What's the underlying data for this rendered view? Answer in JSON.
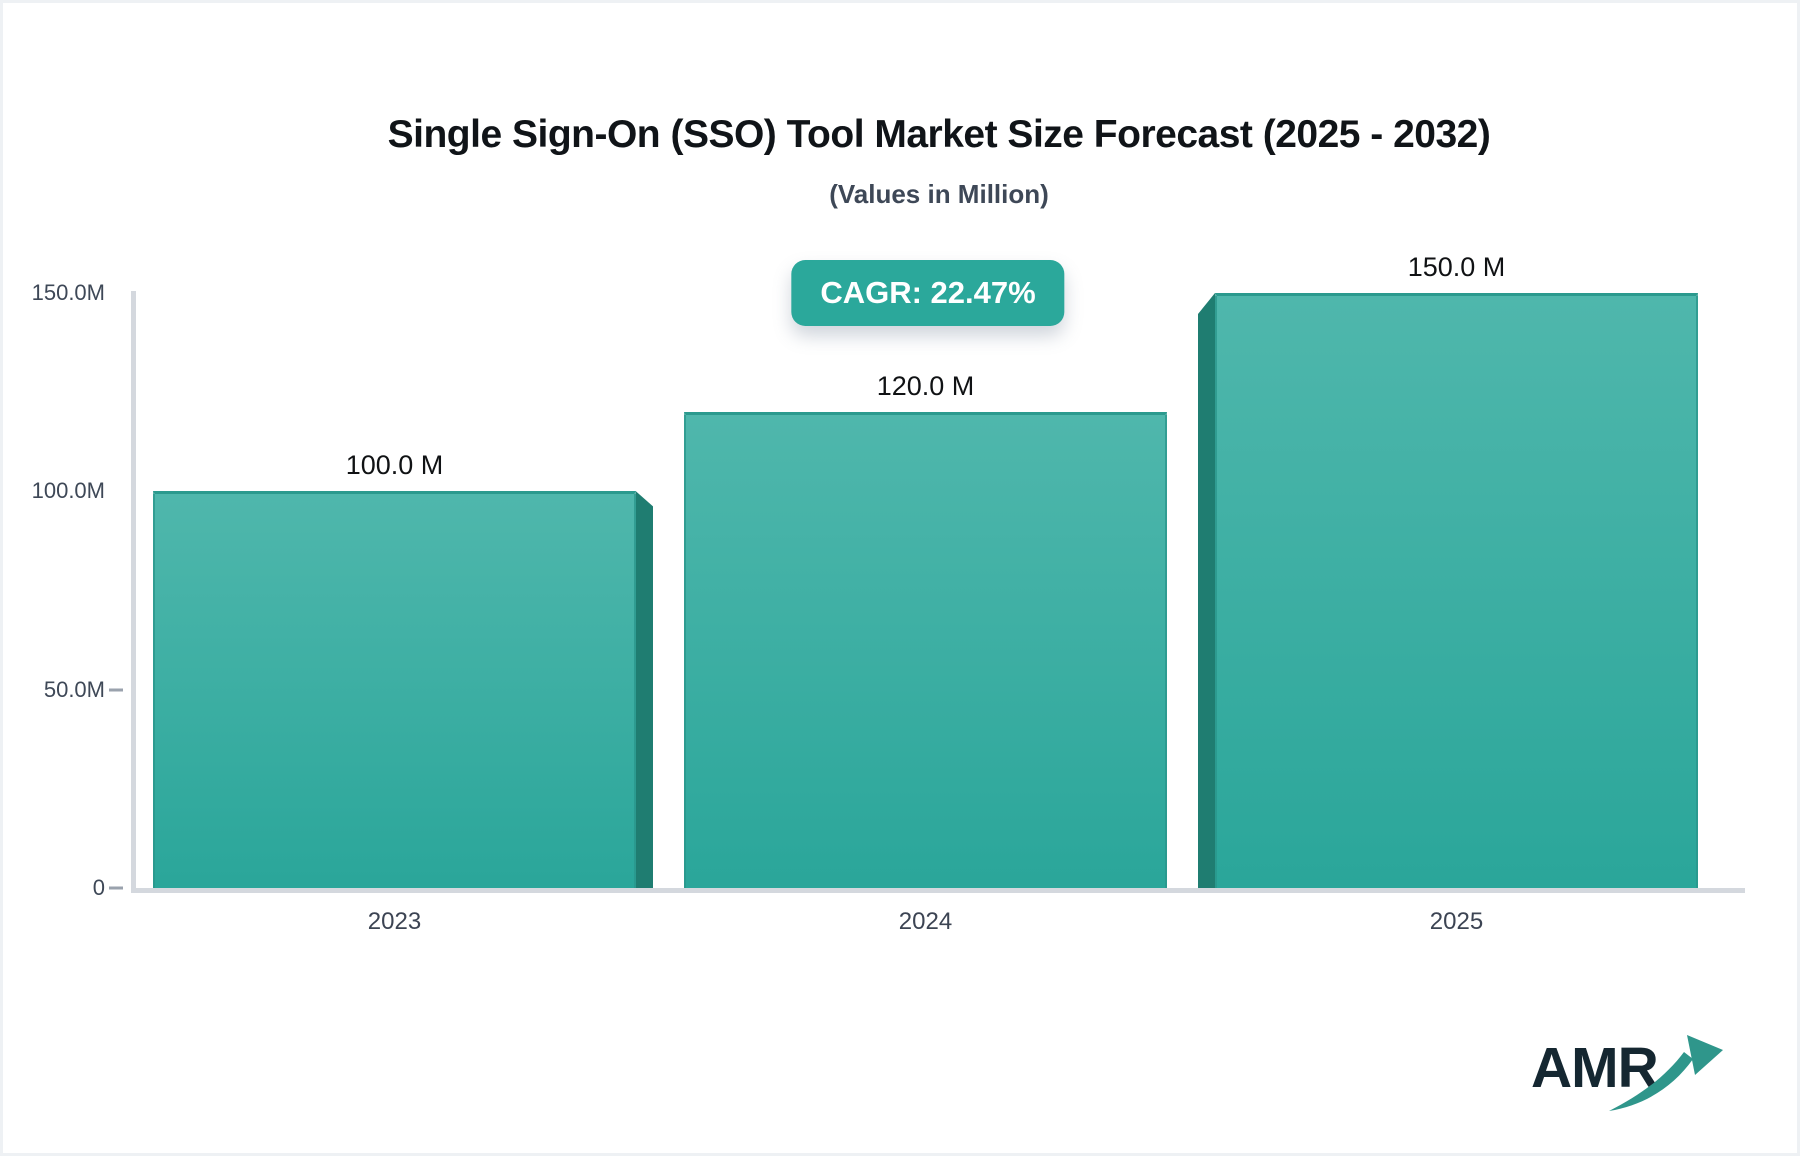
{
  "title": "Single Sign-On (SSO) Tool Market Size Forecast (2025 - 2032)",
  "subtitle": "(Values in Million)",
  "cagr_badge": {
    "label": "CAGR: 22.47%"
  },
  "logo": {
    "text": "AMR",
    "icon": "growth-arrow-icon"
  },
  "colors": {
    "accent_teal": "#2ba89b",
    "bar_gradient_top": "#4fb7ac",
    "bar_gradient_bottom": "#2aa69a",
    "bar_edge": "#2b9a8e",
    "bar_side_shadow": "#1f7d71",
    "axis_line": "#d4d8de",
    "tick": "#9aa2ad",
    "title_text": "#101418",
    "muted_text": "#3e4857",
    "logo_navy": "#152731",
    "badge_bg": "#2ba89b",
    "badge_text": "#ffffff"
  },
  "chart_data": {
    "type": "bar",
    "title": "Single Sign-On (SSO) Tool Market Size Forecast (2025 - 2032)",
    "subtitle": "(Values in Million)",
    "categories": [
      "2023",
      "2024",
      "2025"
    ],
    "values": [
      100.0,
      120.0,
      150.0
    ],
    "bar_labels": [
      "100.0 M",
      "120.0 M",
      "150.0 M"
    ],
    "unit": "M",
    "ylim": [
      0,
      150
    ],
    "y_ticks": [
      {
        "label": "150.0M",
        "value": 150
      },
      {
        "label": "100.0M",
        "value": 100
      },
      {
        "label": "50.0M",
        "value": 50
      },
      {
        "label": "0",
        "value": 0
      }
    ],
    "grid": false,
    "legend": false,
    "annotations": [
      {
        "text": "CAGR: 22.47%",
        "type": "badge"
      }
    ]
  }
}
